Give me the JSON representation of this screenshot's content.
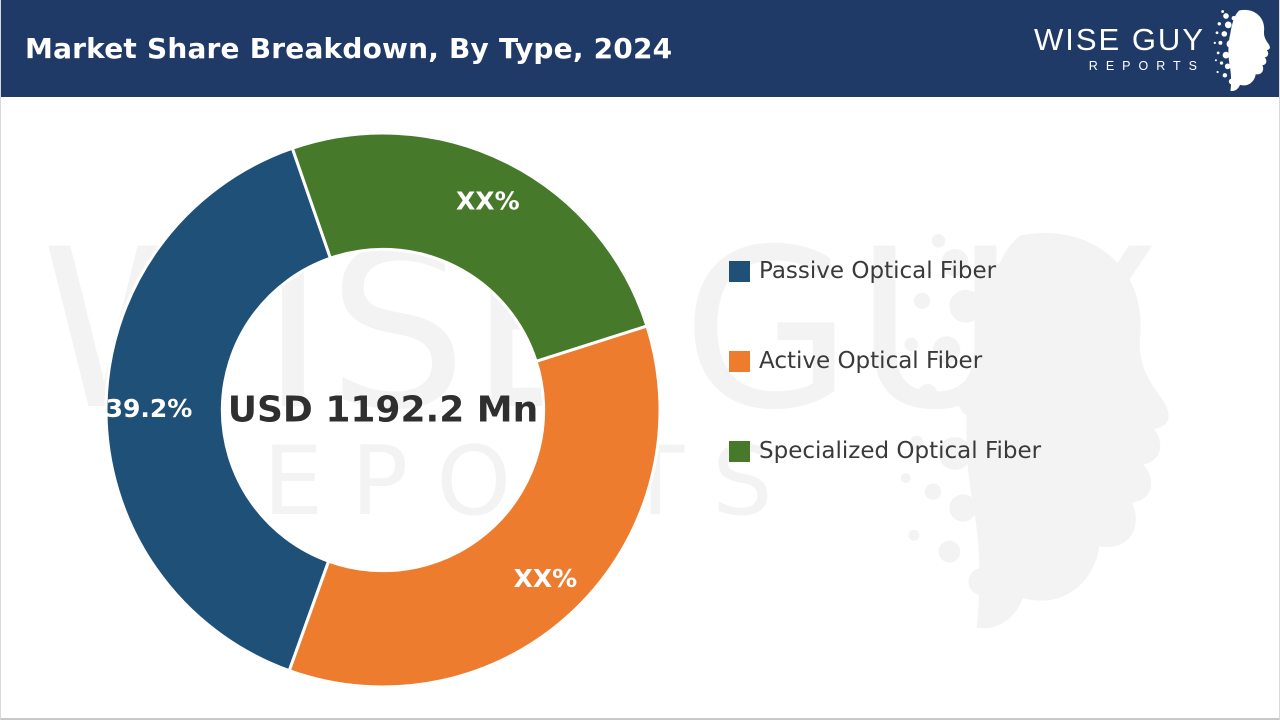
{
  "header": {
    "title": "Market Share Breakdown, By Type, 2024",
    "logo": {
      "name": "WISE GUY",
      "sub": "REPORTS"
    }
  },
  "chart_data": {
    "type": "pie",
    "subtype": "donut",
    "title": "Market Share Breakdown, By Type, 2024",
    "center_label": "USD 1192.2 Mn",
    "series": [
      {
        "name": "Passive Optical Fiber",
        "value_pct": 39.2,
        "label": "39.2%",
        "color": "#1F5078"
      },
      {
        "name": "Active Optical Fiber",
        "value_pct": 35.4,
        "label": "XX%",
        "color": "#EE7C2F"
      },
      {
        "name": "Specialized Optical Fiber",
        "value_pct": 25.4,
        "label": "XX%",
        "color": "#47792A"
      }
    ],
    "start_angle_deg": 250.9,
    "direction": "ccw",
    "inner_radius_ratio": 0.58,
    "legend_position": "right",
    "grid": "off"
  },
  "watermark": {
    "line1": "WISE GUY",
    "line2": "REPORTS"
  },
  "colors": {
    "header_bg": "#203A67",
    "segment_blue": "#1F5078",
    "segment_orange": "#EE7C2F",
    "segment_green": "#47792A",
    "percent_label": "#FFFFFF",
    "center_text": "#2F2F2F",
    "legend_text": "#3A3A3A",
    "watermark_gray": "#F3F3F4"
  }
}
